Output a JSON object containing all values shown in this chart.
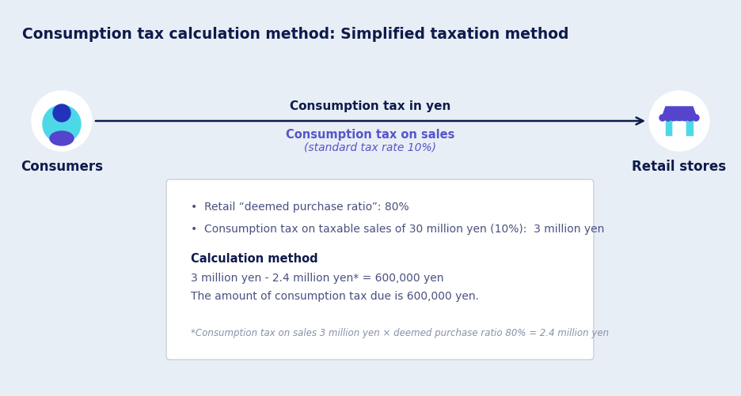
{
  "title": "Consumption tax calculation method: Simplified taxation method",
  "title_color": "#0d1b4b",
  "bg_color": "#e8eef5",
  "arrow_label_top": "Consumption tax in yen",
  "arrow_label_bottom_bold": "Consumption tax on sales",
  "arrow_label_bottom_italic": "(standard tax rate 10%)",
  "arrow_label_color": "#5555cc",
  "arrow_label_top_color": "#0d1b4b",
  "left_label": "Consumers",
  "right_label": "Retail stores",
  "label_color": "#0d1b4b",
  "arrow_color": "#0d1b4b",
  "circle_bg": "#ffffff",
  "icon_light_blue": "#4dd8e8",
  "icon_blue": "#3399ff",
  "icon_dark_blue": "#2244cc",
  "icon_purple": "#5544cc",
  "bullet1": "Retail “deemed purchase ratio”: 80%",
  "bullet2": "Consumption tax on taxable sales of 30 million yen (10%):  3 million yen",
  "calc_header": "Calculation method",
  "calc_line1": "3 million yen - 2.4 million yen* = 600,000 yen",
  "calc_line2": "The amount of consumption tax due is 600,000 yen.",
  "footnote": "*Consumption tax on sales 3 million yen × deemed purchase ratio 80% = 2.4 million yen",
  "box_bg": "#ffffff",
  "box_border": "#c8d0dc",
  "text_color_main": "#4a5080",
  "text_color_dark": "#0d1b4b",
  "text_color_footnote": "#8890aa"
}
